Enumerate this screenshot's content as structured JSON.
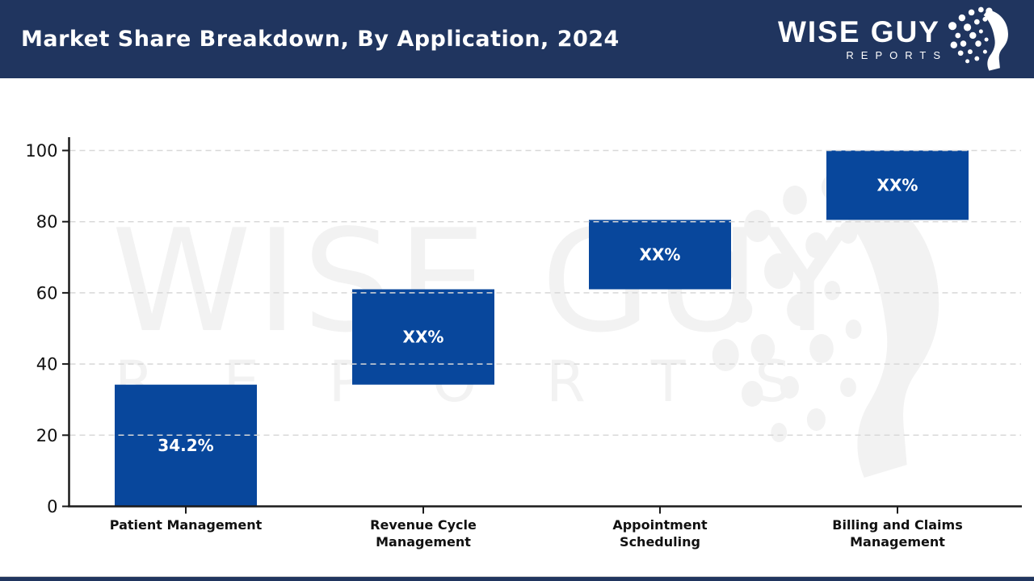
{
  "header": {
    "title": "Market Share Breakdown, By Application, 2024",
    "logo": {
      "line1": "WISE GUY",
      "line2": "REPORTS"
    }
  },
  "watermark": {
    "line1": "WISE GUY",
    "line2": "REPORTS"
  },
  "theme": {
    "header_bg": "#20355f",
    "bar_color": "#08479c",
    "bar_label_color": "#ffffff",
    "grid_color": "#d8d8d8",
    "axis_color": "#1a1a1a",
    "tick_label_color": "#111111",
    "watermark_color": "#f2f2f2"
  },
  "chart_data": {
    "type": "bar",
    "variant": "waterfall",
    "title": "Market Share Breakdown, By Application, 2024",
    "categories": [
      "Patient Management",
      "Revenue Cycle Management",
      "Appointment Scheduling",
      "Billing and Claims Management"
    ],
    "category_lines": [
      [
        "Patient Management"
      ],
      [
        "Revenue Cycle",
        "Management"
      ],
      [
        "Appointment",
        "Scheduling"
      ],
      [
        "Billing and Claims",
        "Management"
      ]
    ],
    "bars": [
      {
        "category": "Patient Management",
        "start": 0,
        "end": 34.2,
        "label": "34.2%"
      },
      {
        "category": "Revenue Cycle Management",
        "start": 34.2,
        "end": 61,
        "label": "XX%"
      },
      {
        "category": "Appointment Scheduling",
        "start": 61,
        "end": 80.5,
        "label": "XX%"
      },
      {
        "category": "Billing and Claims Management",
        "start": 80.5,
        "end": 100,
        "label": "XX%"
      }
    ],
    "xlabel": "",
    "ylabel": "",
    "ylim": [
      0,
      100
    ],
    "yticks": [
      0,
      20,
      40,
      60,
      80,
      100
    ],
    "grid": {
      "horizontal": true,
      "style": "dashed",
      "drawn_over_bars": true
    },
    "legend": "none"
  }
}
